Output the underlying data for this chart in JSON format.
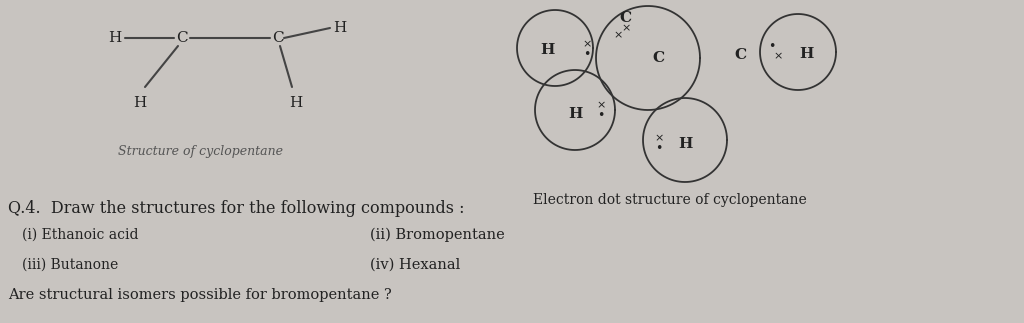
{
  "bg_color": "#c8c4c0",
  "content_bg": "#e8e6e2",
  "text_color": "#222222",
  "bond_color": "#444444",
  "title_left": "Structure of cyclopentane",
  "title_right": "Electron dot structure of cyclopentane",
  "question": "Q.4.  Draw the structures for the following compounds :",
  "item_i": "(i) Ethanoic acid",
  "item_ii": "(ii) Bromopentane",
  "item_iii": "(iii) Butanone",
  "item_iv": "(iv) Hexanal",
  "footer": "Are structural isomers possible for bromopentane ?"
}
